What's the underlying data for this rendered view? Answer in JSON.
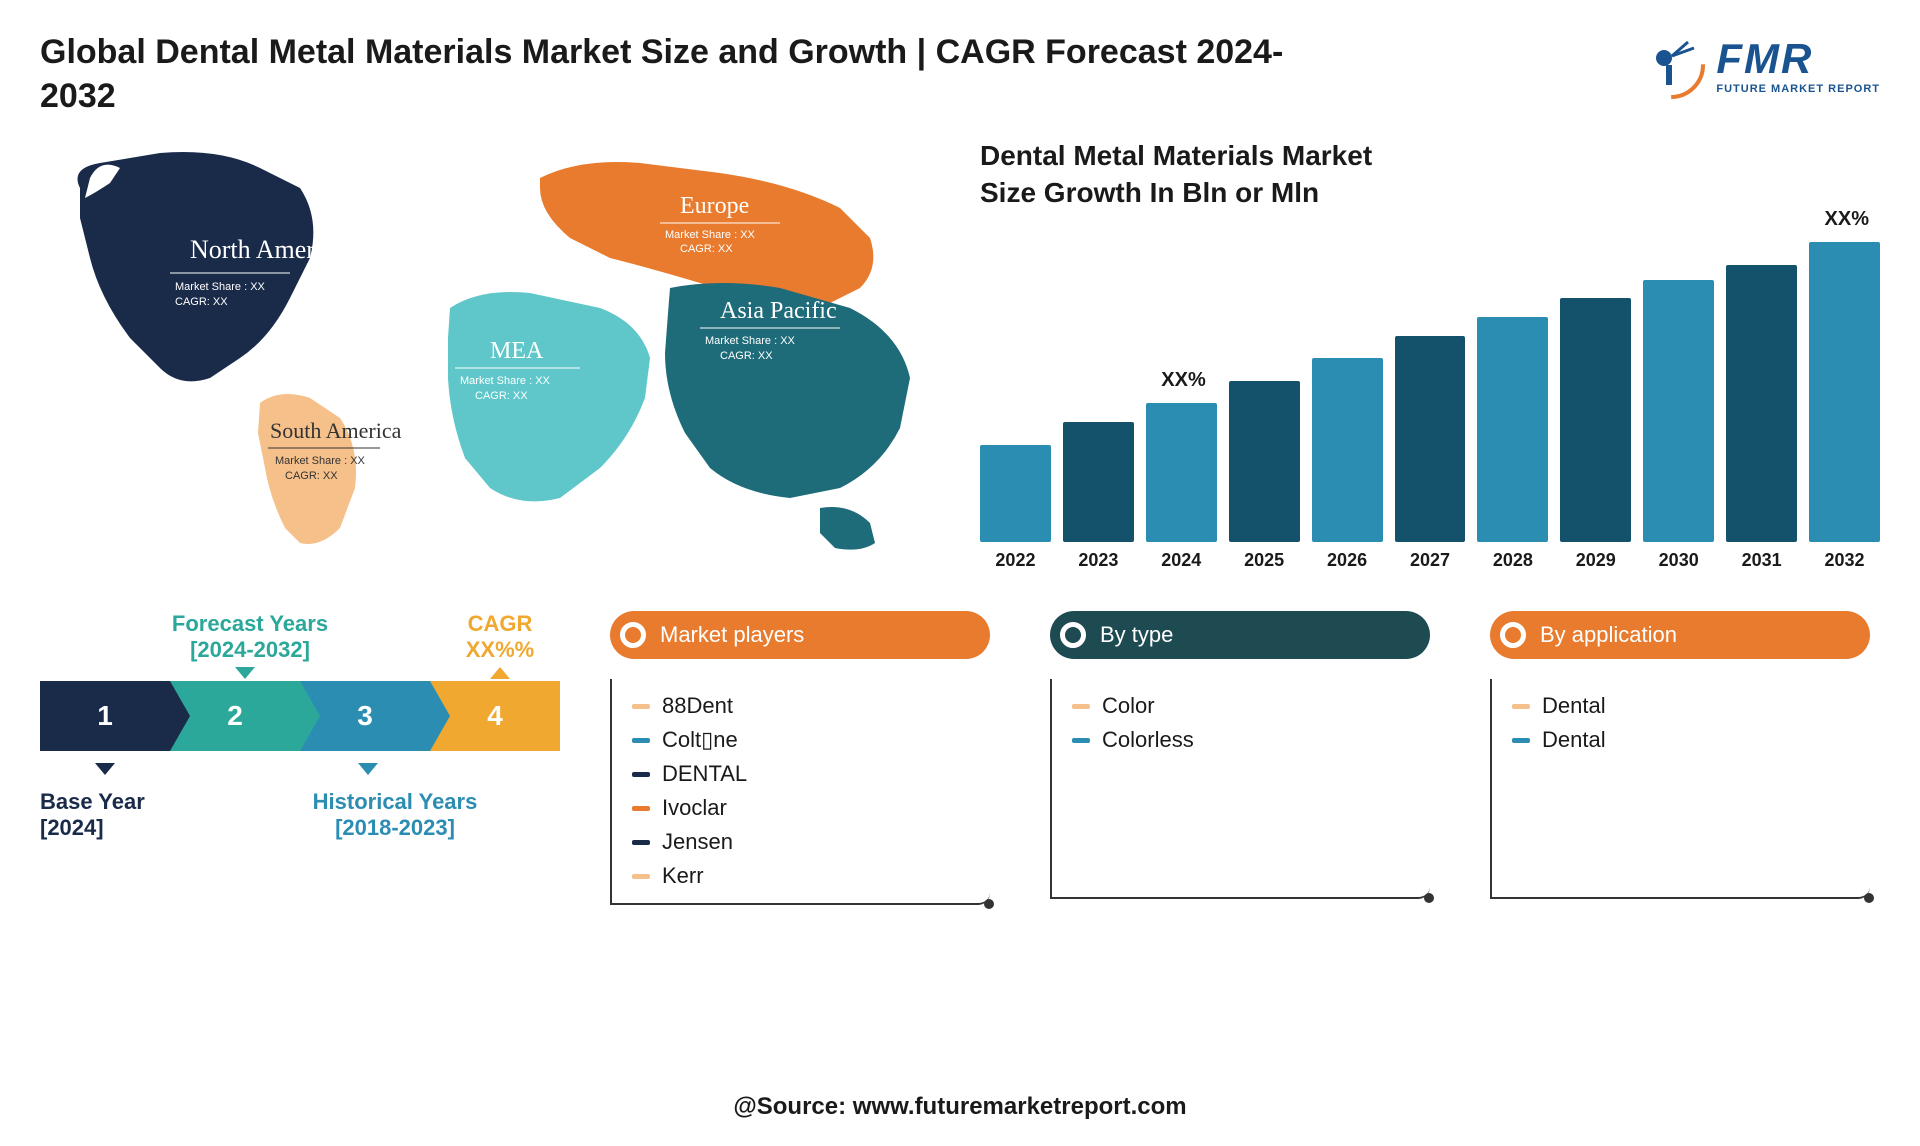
{
  "title": "Global Dental Metal Materials Market Size and Growth | CAGR Forecast 2024-2032",
  "logo": {
    "fmr": "FMR",
    "sub": "FUTURE MARKET REPORT"
  },
  "map": {
    "regions": [
      {
        "name": "North America",
        "share": "Market Share : XX",
        "cagr": "CAGR: XX",
        "color": "#1a2b4a",
        "labelColor": "#fff"
      },
      {
        "name": "South America",
        "share": "Market Share : XX",
        "cagr": "CAGR: XX",
        "color": "#f5c08a",
        "labelColor": "#333"
      },
      {
        "name": "Europe",
        "share": "Market Share : XX",
        "cagr": "CAGR: XX",
        "color": "#e87b2e",
        "labelColor": "#fff"
      },
      {
        "name": "MEA",
        "share": "Market Share : XX",
        "cagr": "CAGR: XX",
        "color": "#5fc7c9",
        "labelColor": "#fff"
      },
      {
        "name": "Asia Pacific",
        "share": "Market Share : XX",
        "cagr": "CAGR: XX",
        "color": "#1e6b7a",
        "labelColor": "#fff"
      }
    ]
  },
  "chart": {
    "title": "Dental Metal Materials Market Size Growth In Bln or Mln",
    "type": "bar",
    "years": [
      "2022",
      "2023",
      "2024",
      "2025",
      "2026",
      "2027",
      "2028",
      "2029",
      "2030",
      "2031",
      "2032"
    ],
    "values": [
      130,
      160,
      185,
      215,
      245,
      275,
      300,
      325,
      350,
      370,
      400
    ],
    "colors": [
      "#2c8db3",
      "#14516b",
      "#2c8db3",
      "#14516b",
      "#2c8db3",
      "#14516b",
      "#2c8db3",
      "#14516b",
      "#2c8db3",
      "#14516b",
      "#2c8db3"
    ],
    "annotations": [
      {
        "index": 2,
        "text": "XX%"
      },
      {
        "index": 10,
        "text": "XX%"
      }
    ],
    "max": 400,
    "label_fontsize": 18,
    "title_fontsize": 28,
    "bar_gap": 12
  },
  "timeline": {
    "segments": [
      {
        "num": "1",
        "color": "#1a2b4a"
      },
      {
        "num": "2",
        "color": "#2ba89a"
      },
      {
        "num": "3",
        "color": "#2c8db3"
      },
      {
        "num": "4",
        "color": "#f0a830"
      }
    ],
    "labels": {
      "base": {
        "title": "Base Year",
        "value": "[2024]",
        "color": "#1a2b4a"
      },
      "forecast": {
        "title": "Forecast Years",
        "value": "[2024-2032]",
        "color": "#2ba89a"
      },
      "historical": {
        "title": "Historical Years",
        "value": "[2018-2023]",
        "color": "#2c8db3"
      },
      "cagr": {
        "title": "CAGR",
        "value": "XX%%",
        "color": "#f0a830"
      }
    }
  },
  "categories": [
    {
      "title": "Market players",
      "headerColor": "#e87b2e",
      "items": [
        {
          "text": "88Dent",
          "color": "#f5c08a"
        },
        {
          "text": "Colt▯ne",
          "color": "#2c8db3"
        },
        {
          "text": "DENTAL",
          "color": "#1a2b4a"
        },
        {
          "text": "Ivoclar",
          "color": "#e87b2e"
        },
        {
          "text": "Jensen",
          "color": "#1a2b4a"
        },
        {
          "text": "Kerr",
          "color": "#f5c08a"
        }
      ]
    },
    {
      "title": "By type",
      "headerColor": "#1e4a52",
      "items": [
        {
          "text": "Color",
          "color": "#f5c08a"
        },
        {
          "text": "Colorless",
          "color": "#2c8db3"
        }
      ]
    },
    {
      "title": "By application",
      "headerColor": "#e87b2e",
      "items": [
        {
          "text": "Dental",
          "color": "#f5c08a"
        },
        {
          "text": "Dental",
          "color": "#2c8db3"
        }
      ]
    }
  ],
  "source": "@Source: www.futuremarketreport.com"
}
